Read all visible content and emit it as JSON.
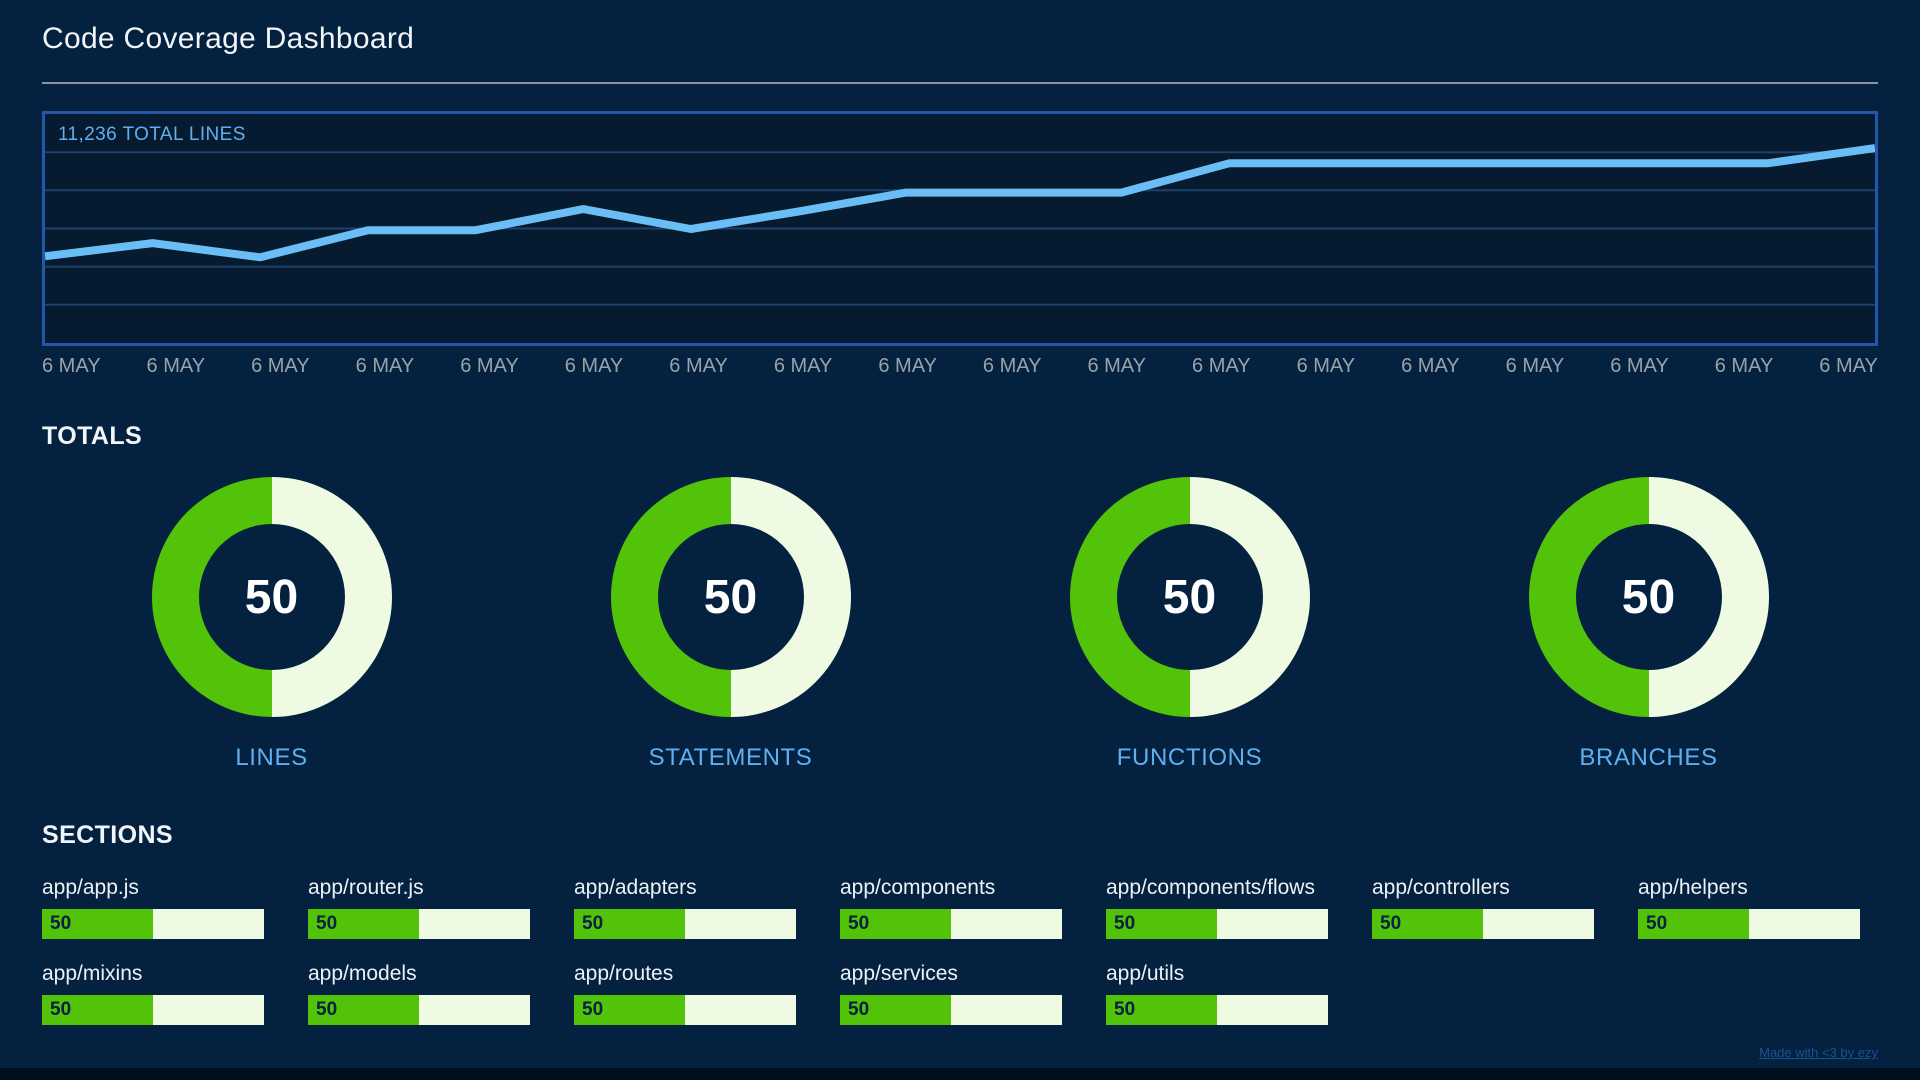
{
  "page": {
    "title": "Code Coverage Dashboard",
    "footer_link": "Made with <3 by ezy"
  },
  "totals": {
    "heading": "TOTALS"
  },
  "sections": {
    "heading": "SECTIONS"
  },
  "chart_data": [
    {
      "type": "line",
      "title": "11,236 TOTAL LINES",
      "x": [
        "6 MAY",
        "6 MAY",
        "6 MAY",
        "6 MAY",
        "6 MAY",
        "6 MAY",
        "6 MAY",
        "6 MAY",
        "6 MAY",
        "6 MAY",
        "6 MAY",
        "6 MAY",
        "6 MAY",
        "6 MAY",
        "6 MAY",
        "6 MAY",
        "6 MAY",
        "6 MAY"
      ],
      "values": [
        5000,
        5760,
        4940,
        6500,
        6500,
        7720,
        6570,
        7580,
        8670,
        8670,
        8670,
        10360,
        10360,
        10360,
        10360,
        10360,
        10360,
        11236
      ],
      "ylabel": "total lines",
      "ylim": [
        0,
        13200
      ],
      "grid": "horizontal",
      "gridline_count": 5,
      "legend": "none"
    },
    {
      "type": "donut",
      "title": "TOTALS",
      "categories": [
        "LINES",
        "STATEMENTS",
        "FUNCTIONS",
        "BRANCHES"
      ],
      "values": [
        50,
        50,
        50,
        50
      ],
      "unit": "percent",
      "max": 100
    },
    {
      "type": "bar",
      "title": "SECTIONS",
      "categories": [
        "app/app.js",
        "app/router.js",
        "app/adapters",
        "app/components",
        "app/components/flows",
        "app/controllers",
        "app/helpers",
        "app/mixins",
        "app/models",
        "app/routes",
        "app/services",
        "app/utils"
      ],
      "values": [
        50,
        50,
        50,
        50,
        50,
        50,
        50,
        50,
        50,
        50,
        50,
        50
      ],
      "unit": "percent",
      "xlim": [
        0,
        100
      ]
    }
  ],
  "colors": {
    "background": "#04223f",
    "chart_background": "#061a30",
    "chart_border": "#2457a8",
    "gridline": "#1d4168",
    "line_blue": "#6bbef5",
    "label_blue": "#5fb0f0",
    "axis_gray": "#99a2ab",
    "green": "#53c30a",
    "pale_green": "#eefbe2",
    "heading_white": "#f2f5f7",
    "footer_blue": "#1d4f91"
  }
}
